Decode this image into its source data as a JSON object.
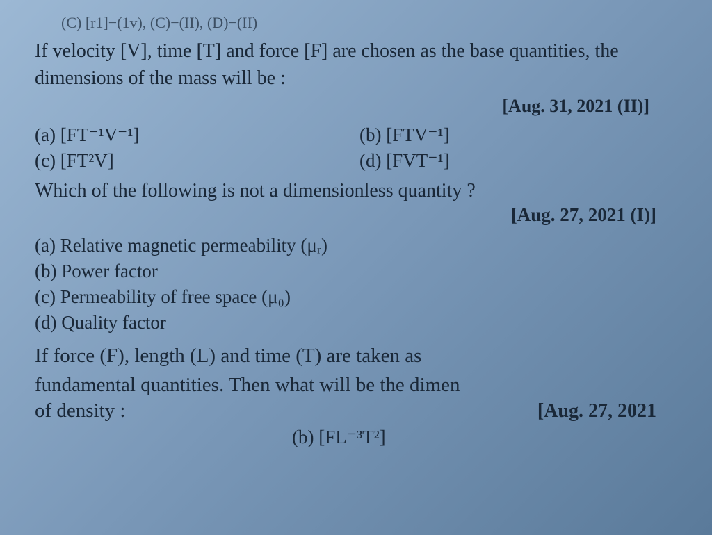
{
  "colors": {
    "background_gradient_start": "#9cb8d4",
    "background_gradient_mid": "#7a98b8",
    "background_gradient_end": "#5a7a9a",
    "text_color": "#1a2838"
  },
  "typography": {
    "font_family": "Times New Roman",
    "body_fontsize": 28,
    "option_fontsize": 27,
    "date_fontsize": 26,
    "date_fontweight": 600
  },
  "partial_top": "(C) [r1]−(1v), (C)−(II), (D)−(II)",
  "q1": {
    "text": "If velocity [V], time [T] and force [F] are chosen as the base quantities, the dimensions of the mass will be :",
    "date_ref": "[Aug. 31, 2021 (II)]",
    "options": {
      "a": "(a)  [FT⁻¹V⁻¹]",
      "b": "(b)  [FTV⁻¹]",
      "c": "(c)  [FT²V]",
      "d": "(d)  [FVT⁻¹]"
    }
  },
  "q2": {
    "text": "Which of the following is not a dimensionless quantity ?",
    "date_ref": "[Aug. 27, 2021 (I)]",
    "options": {
      "a": "(a)  Relative magnetic permeability (μᵣ)",
      "b": "(b)  Power factor",
      "c": "(c)  Permeability of free space (μ₀)",
      "d": "(d)  Quality factor"
    }
  },
  "q3": {
    "text_line1": "If force (F), length (L) and time (T) are taken as",
    "text_line2": "fundamental quantities. Then what will be the dimen",
    "density": "of density :",
    "date_ref": "[Aug. 27, 2021",
    "partial_option": "(b)  [FL⁻³T²]"
  }
}
